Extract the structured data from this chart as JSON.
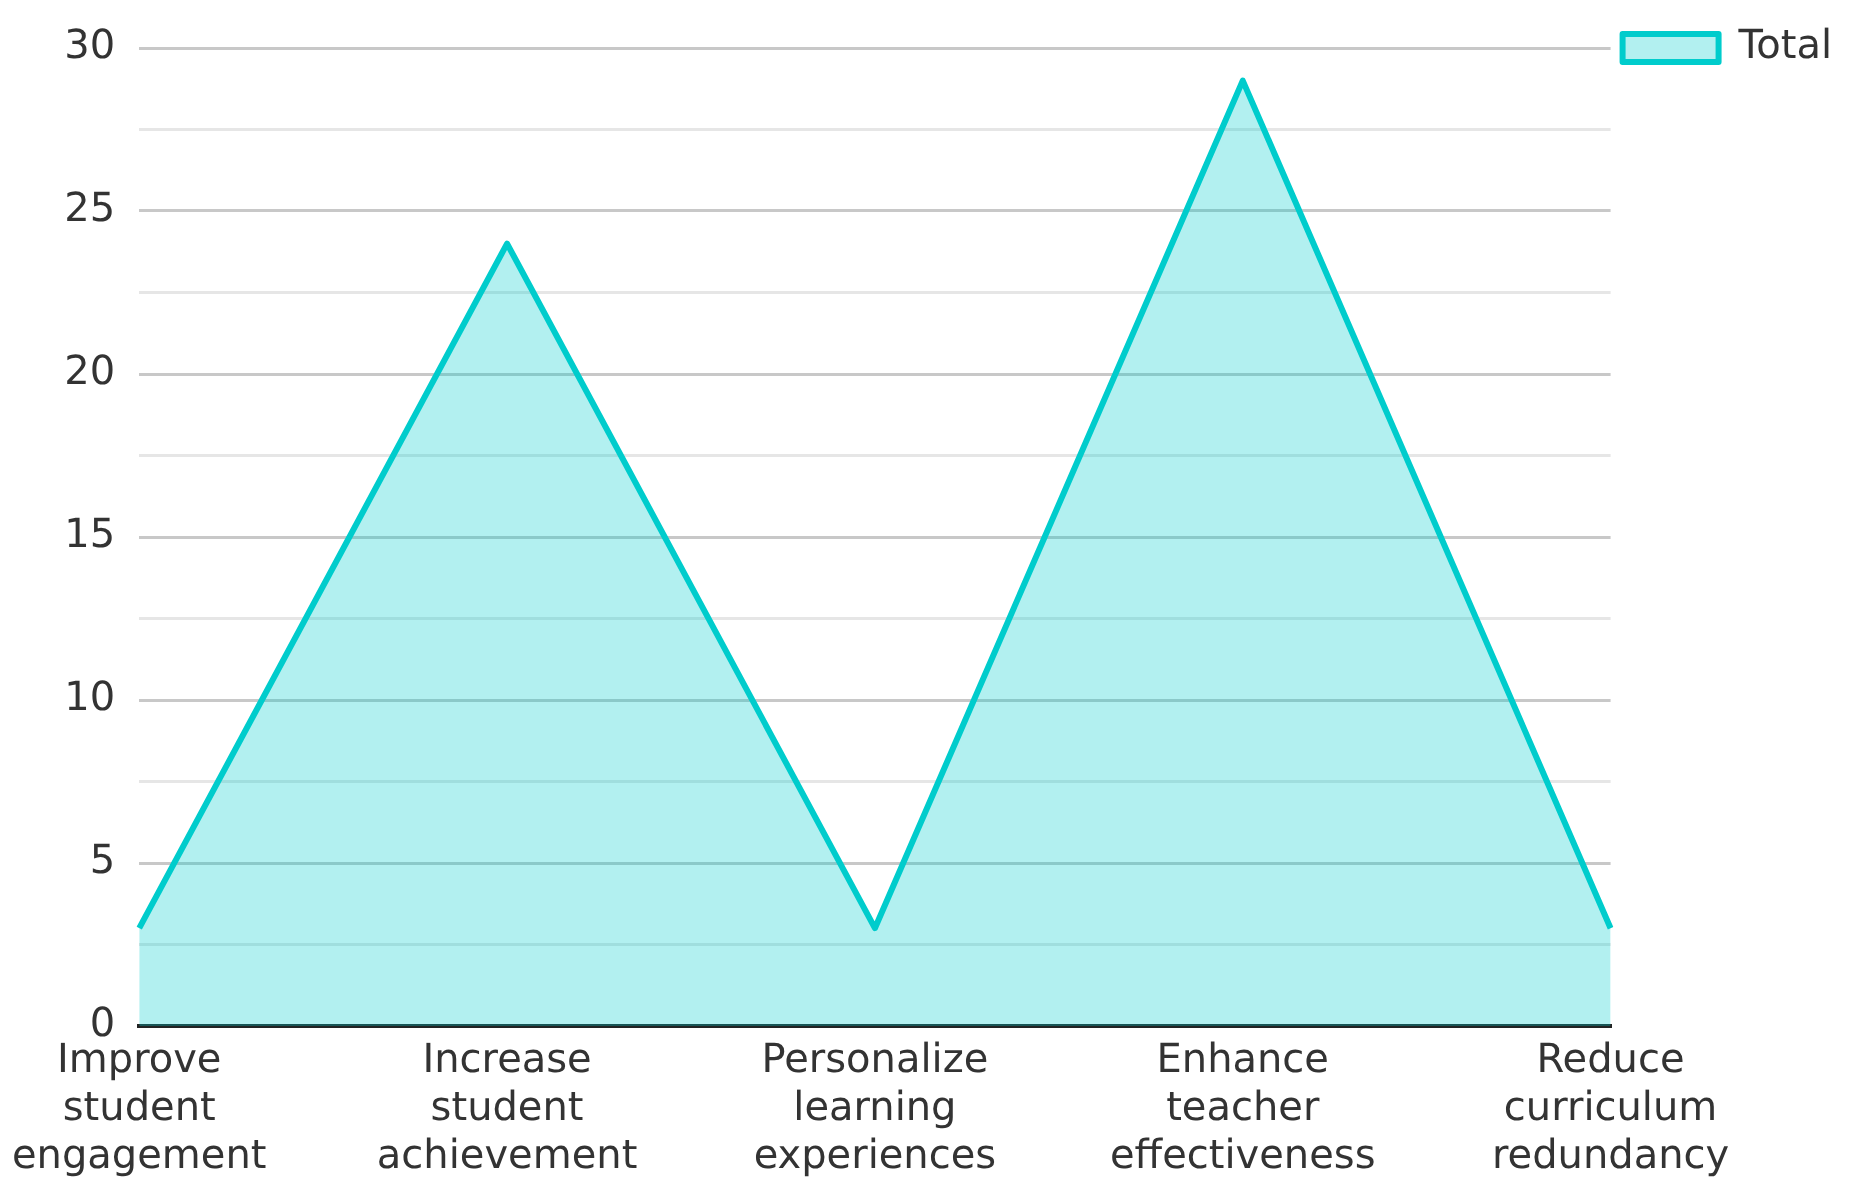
{
  "chart_data": {
    "type": "area",
    "categories": [
      "Improve student engagement",
      "Increase student achievement",
      "Personalize learning experiences",
      "Enhance teacher effectiveness",
      "Reduce curriculum redundancy"
    ],
    "series": [
      {
        "name": "Total",
        "color": "#00cccc",
        "values": [
          3,
          24,
          3,
          29,
          3
        ]
      }
    ],
    "ylim": [
      0,
      30
    ],
    "yticks": [
      0,
      {
        "value": 2.5,
        "label": null
      },
      5,
      {
        "value": 7.5,
        "label": null
      },
      10,
      {
        "value": 12.5,
        "label": null
      },
      15,
      {
        "value": 17.5,
        "label": null
      },
      20,
      {
        "value": 22.5,
        "label": null
      },
      25,
      {
        "value": 27.5,
        "label": null
      },
      30
    ],
    "grid": "y",
    "legend": "top right",
    "marker": "none"
  }
}
